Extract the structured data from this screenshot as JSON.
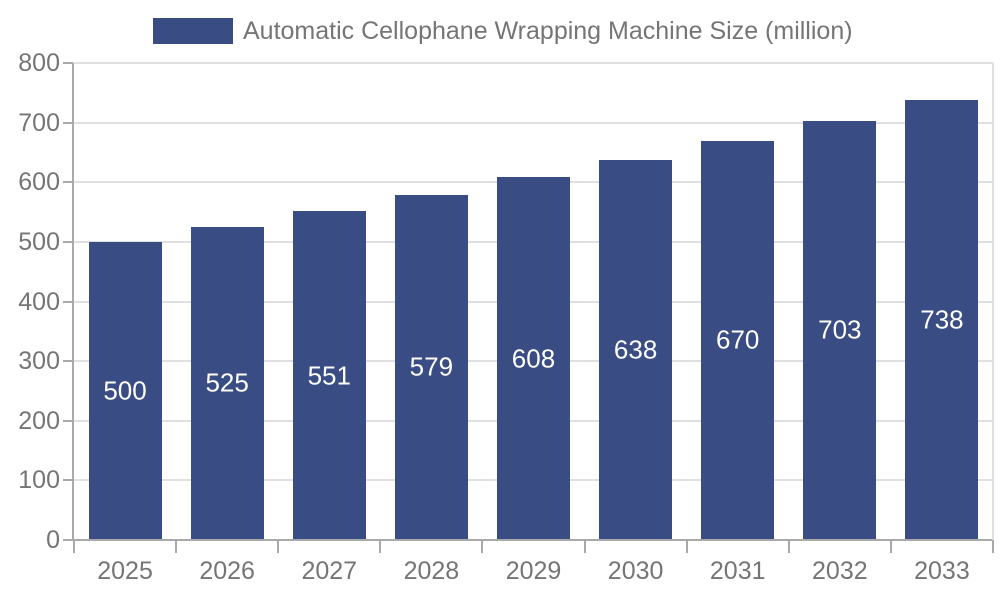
{
  "chart_data": {
    "type": "bar",
    "title": "Automatic Cellophane Wrapping Machine Size (million)",
    "series_name": "Automatic Cellophane Wrapping Machine Size (million)",
    "categories": [
      "2025",
      "2026",
      "2027",
      "2028",
      "2029",
      "2030",
      "2031",
      "2032",
      "2033"
    ],
    "values": [
      500,
      525,
      551,
      579,
      608,
      638,
      670,
      703,
      738
    ],
    "xlabel": "",
    "ylabel": "",
    "ylim": [
      0,
      800
    ],
    "yticks": [
      0,
      100,
      200,
      300,
      400,
      500,
      600,
      700,
      800
    ],
    "grid": true,
    "legend_position": "top",
    "bar_color": "#394c84",
    "value_label_color": "#ffffff",
    "axis_label_color": "#757575",
    "title_color": "#757575",
    "axis_line_color": "#a9a9a9",
    "gridline_color": "#e0e0e0",
    "background_color": "#ffffff"
  }
}
